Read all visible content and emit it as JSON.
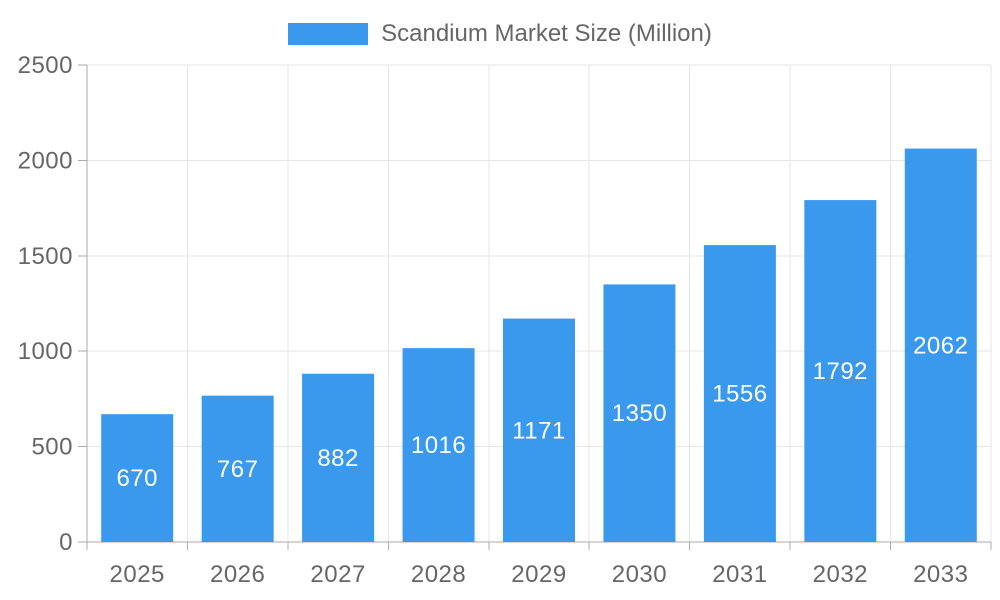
{
  "chart_data": {
    "type": "bar",
    "title": "Scandium Market Size (Million)",
    "categories": [
      "2025",
      "2026",
      "2027",
      "2028",
      "2029",
      "2030",
      "2031",
      "2032",
      "2033"
    ],
    "values": [
      670,
      767,
      882,
      1016,
      1171,
      1350,
      1556,
      1792,
      2062
    ],
    "xlabel": "",
    "ylabel": "",
    "ylim": [
      0,
      2500
    ],
    "y_ticks": [
      0,
      500,
      1000,
      1500,
      2000,
      2500
    ],
    "grid": true,
    "legend_position": "top-center",
    "bar_value_labels_visible": true,
    "colors": {
      "bar": "#3A99EC",
      "bar_label_text": "#FFFFFF",
      "axis_text": "#666666",
      "grid_line": "#E5E5E5",
      "axis_line": "#ABABAB",
      "background": "#FFFFFF"
    }
  }
}
